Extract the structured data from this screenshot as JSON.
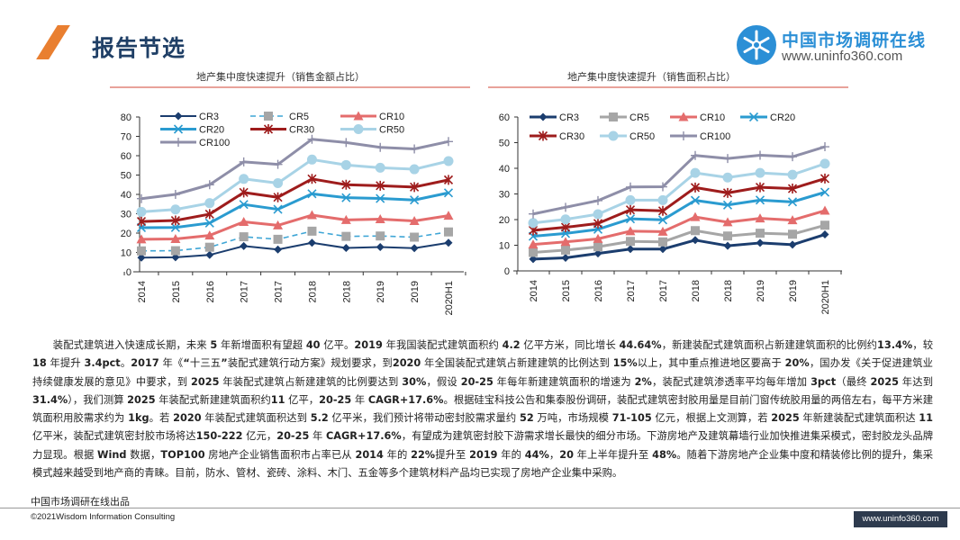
{
  "header": {
    "title": "报告节选",
    "logo_cn": "中国市场调研在线",
    "logo_url": "www.uninfo360.com",
    "accent_color": "#e97f30",
    "title_color": "#1f3f66",
    "logo_color": "#2b8fd6"
  },
  "chart_data": [
    {
      "type": "line",
      "title": "地产集中度快速提升（销售金额占比）",
      "xlabel": "",
      "ylabel": "",
      "ylim": [
        0,
        80
      ],
      "yticks": [
        0,
        10,
        20,
        30,
        40,
        50,
        60,
        70,
        80
      ],
      "grid": false,
      "legend": "top-left",
      "categories": [
        "2014",
        "2015",
        "2016",
        "2017",
        "2017",
        "2018",
        "2018",
        "2019",
        "2019",
        "2020H1"
      ],
      "series": [
        {
          "name": "CR3",
          "color": "#1b3d6e",
          "marker": "diamond",
          "dash": false,
          "values": [
            7.3,
            7.5,
            8.7,
            13.3,
            11.5,
            15.0,
            12.3,
            12.8,
            12.2,
            15.0
          ]
        },
        {
          "name": "CR5",
          "color": "#3fa6d6",
          "marker": "square",
          "marker_color": "#a6a6a6",
          "dash": true,
          "values": [
            10.8,
            10.9,
            12.7,
            18.1,
            16.8,
            21.0,
            18.3,
            18.5,
            17.9,
            20.6
          ]
        },
        {
          "name": "CR10",
          "color": "#e46c6c",
          "marker": "triangle",
          "dash": false,
          "values": [
            16.8,
            17.0,
            18.8,
            25.8,
            24.0,
            29.3,
            26.8,
            27.2,
            26.3,
            29.0
          ]
        },
        {
          "name": "CR20",
          "color": "#2a9bd0",
          "marker": "x",
          "dash": false,
          "values": [
            22.8,
            22.9,
            25.2,
            34.8,
            32.3,
            40.3,
            38.3,
            37.9,
            37.1,
            40.8
          ]
        },
        {
          "name": "CR30",
          "color": "#9e1c1c",
          "marker": "star",
          "dash": false,
          "values": [
            26.0,
            26.5,
            29.8,
            41.0,
            38.5,
            48.0,
            45.0,
            44.5,
            43.8,
            47.5
          ]
        },
        {
          "name": "CR50",
          "color": "#a8d3e6",
          "marker": "circle",
          "dash": false,
          "values": [
            31.0,
            32.2,
            35.5,
            48.0,
            45.8,
            58.0,
            55.2,
            53.8,
            53.0,
            57.2
          ]
        },
        {
          "name": "CR100",
          "color": "#8e8ea8",
          "marker": "plus",
          "dash": false,
          "values": [
            37.8,
            40.0,
            45.0,
            56.8,
            55.5,
            68.5,
            66.8,
            64.3,
            63.5,
            67.3
          ]
        }
      ]
    },
    {
      "type": "line",
      "title": "地产集中度快速提升（销售面积占比）",
      "xlabel": "",
      "ylabel": "",
      "ylim": [
        0,
        60
      ],
      "yticks": [
        0,
        10,
        20,
        30,
        40,
        50,
        60
      ],
      "grid": false,
      "legend": "top-left",
      "categories": [
        "2014",
        "2015",
        "2016",
        "2017",
        "2017",
        "2018",
        "2018",
        "2019",
        "2019",
        "2020H1"
      ],
      "series": [
        {
          "name": "CR3",
          "color": "#1b3d6e",
          "marker": "diamond",
          "dash": false,
          "values": [
            4.6,
            5.1,
            6.8,
            8.5,
            8.5,
            12.0,
            9.8,
            10.9,
            10.2,
            14.2
          ]
        },
        {
          "name": "CR5",
          "color": "#a6a6a6",
          "marker": "square",
          "dash": false,
          "values": [
            7.2,
            8.1,
            9.4,
            11.5,
            11.3,
            15.7,
            13.6,
            14.7,
            14.3,
            17.8
          ]
        },
        {
          "name": "CR10",
          "color": "#e46c6c",
          "marker": "triangle",
          "dash": false,
          "values": [
            10.3,
            11.3,
            12.5,
            15.5,
            15.3,
            21.0,
            19.0,
            20.5,
            19.8,
            23.5
          ]
        },
        {
          "name": "CR20",
          "color": "#2a9bd0",
          "marker": "x",
          "dash": false,
          "values": [
            13.5,
            14.6,
            16.2,
            20.3,
            19.9,
            27.5,
            25.7,
            27.6,
            26.9,
            30.7
          ]
        },
        {
          "name": "CR30",
          "color": "#9e1c1c",
          "marker": "star",
          "dash": false,
          "values": [
            15.8,
            17.0,
            18.5,
            23.8,
            23.4,
            32.5,
            30.4,
            32.6,
            32.1,
            36.0
          ]
        },
        {
          "name": "CR50",
          "color": "#a8d3e6",
          "marker": "circle",
          "dash": false,
          "values": [
            18.7,
            20.1,
            22.1,
            27.6,
            27.6,
            38.2,
            36.4,
            38.2,
            37.5,
            41.8
          ]
        },
        {
          "name": "CR100",
          "color": "#8e8ea8",
          "marker": "plus",
          "dash": false,
          "values": [
            22.2,
            24.8,
            27.4,
            32.7,
            32.8,
            45.0,
            43.8,
            45.1,
            44.5,
            48.4
          ]
        }
      ]
    }
  ],
  "paragraph": [
    {
      "t": "装配式建筑进入快速成长期，未来 "
    },
    {
      "t": "5",
      "b": true
    },
    {
      "t": " 年新增面积有望超 "
    },
    {
      "t": "40",
      "b": true
    },
    {
      "t": " 亿平。"
    },
    {
      "t": "2019",
      "b": true
    },
    {
      "t": " 年我国装配式建筑面积约 "
    },
    {
      "t": "4.2",
      "b": true
    },
    {
      "t": " 亿平方米，同比增长 "
    },
    {
      "t": "44.64%",
      "b": true
    },
    {
      "t": "，新建装配式建筑面积占新建建筑面积的比例约"
    },
    {
      "t": "13.4%",
      "b": true
    },
    {
      "t": "，较 "
    },
    {
      "t": "18",
      "b": true
    },
    {
      "t": " 年提升 "
    },
    {
      "t": "3.4pct",
      "b": true
    },
    {
      "t": "。"
    },
    {
      "t": "2017",
      "b": true
    },
    {
      "t": " 年《"
    },
    {
      "t": "“",
      "b": true
    },
    {
      "t": "十三五"
    },
    {
      "t": "”",
      "b": true
    },
    {
      "t": "装配式建筑行动方案》规划要求，到"
    },
    {
      "t": "2020",
      "b": true
    },
    {
      "t": " 年全国装配式建筑占新建建筑的比例达到 "
    },
    {
      "t": "15%",
      "b": true
    },
    {
      "t": "以上，其中重点推进地区要高于 "
    },
    {
      "t": "20%",
      "b": true
    },
    {
      "t": "，国办发《关于促进建筑业持续健康发展的意见》中要求，到 "
    },
    {
      "t": "2025",
      "b": true
    },
    {
      "t": " 年装配式建筑占新建建筑的比例要达到 "
    },
    {
      "t": "30%",
      "b": true
    },
    {
      "t": "，假设 "
    },
    {
      "t": "20-25",
      "b": true
    },
    {
      "t": " 年每年新建建筑面积的增速为 "
    },
    {
      "t": "2%",
      "b": true
    },
    {
      "t": "，装配式建筑渗透率平均每年增加 "
    },
    {
      "t": "3pct",
      "b": true
    },
    {
      "t": "（最终 "
    },
    {
      "t": "2025",
      "b": true
    },
    {
      "t": " 年达到 "
    },
    {
      "t": "31.4%",
      "b": true
    },
    {
      "t": "），我们测算 "
    },
    {
      "t": "2025",
      "b": true
    },
    {
      "t": " 年装配式新建建筑面积约"
    },
    {
      "t": "11",
      "b": true
    },
    {
      "t": " 亿平，"
    },
    {
      "t": "20-25",
      "b": true
    },
    {
      "t": " 年 "
    },
    {
      "t": "CAGR+17.6%",
      "b": true
    },
    {
      "t": "。根据硅宝科技公告和集泰股份调研，装配式建筑密封胶用量是目前门窗传统胶用量的两倍左右，每平方米建筑面积用胶需求约为 "
    },
    {
      "t": "1kg",
      "b": true
    },
    {
      "t": "。若 "
    },
    {
      "t": "2020",
      "b": true
    },
    {
      "t": " 年装配式建筑面积达到 "
    },
    {
      "t": "5.2",
      "b": true
    },
    {
      "t": " 亿平米，我们预计将带动密封胶需求量约 "
    },
    {
      "t": "52",
      "b": true
    },
    {
      "t": " 万吨，市场规模 "
    },
    {
      "t": "71-105",
      "b": true
    },
    {
      "t": " 亿元，根据上文测算，若 "
    },
    {
      "t": "2025",
      "b": true
    },
    {
      "t": " 年新建装配式建筑面积达 "
    },
    {
      "t": "11",
      "b": true
    },
    {
      "t": " 亿平米，装配式建筑密封胶市场将达"
    },
    {
      "t": "150-222",
      "b": true
    },
    {
      "t": " 亿元，"
    },
    {
      "t": "20-25",
      "b": true
    },
    {
      "t": " 年 "
    },
    {
      "t": "CAGR+17.6%",
      "b": true
    },
    {
      "t": "，有望成为建筑密封胶下游需求增长最快的细分市场。下游房地产及建筑幕墙行业加快推进集采模式，密封胶龙头品牌力显现。根据 "
    },
    {
      "t": "Wind",
      "b": true
    },
    {
      "t": " 数据，"
    },
    {
      "t": "TOP100",
      "b": true
    },
    {
      "t": " 房地产企业销售面积市占率已从 "
    },
    {
      "t": "2014",
      "b": true
    },
    {
      "t": " 年的 "
    },
    {
      "t": "22%",
      "b": true
    },
    {
      "t": "提升至 "
    },
    {
      "t": "2019",
      "b": true
    },
    {
      "t": " 年的 "
    },
    {
      "t": "44%",
      "b": true
    },
    {
      "t": "，"
    },
    {
      "t": "20",
      "b": true
    },
    {
      "t": " 年上半年提升至 "
    },
    {
      "t": "48%",
      "b": true
    },
    {
      "t": "。随着下游房地产企业集中度和精装修比例的提升，集采模式越来越受到地产商的青睐。目前，防水、管材、瓷砖、涂料、木门、五金等多个建筑材料产品均已实现了房地产企业集中采购。"
    }
  ],
  "footer": {
    "brand": "中国市场调研在线出品",
    "copyright": "©2021Wisdom Information Consulting",
    "url": "www.uninfo360.com"
  }
}
